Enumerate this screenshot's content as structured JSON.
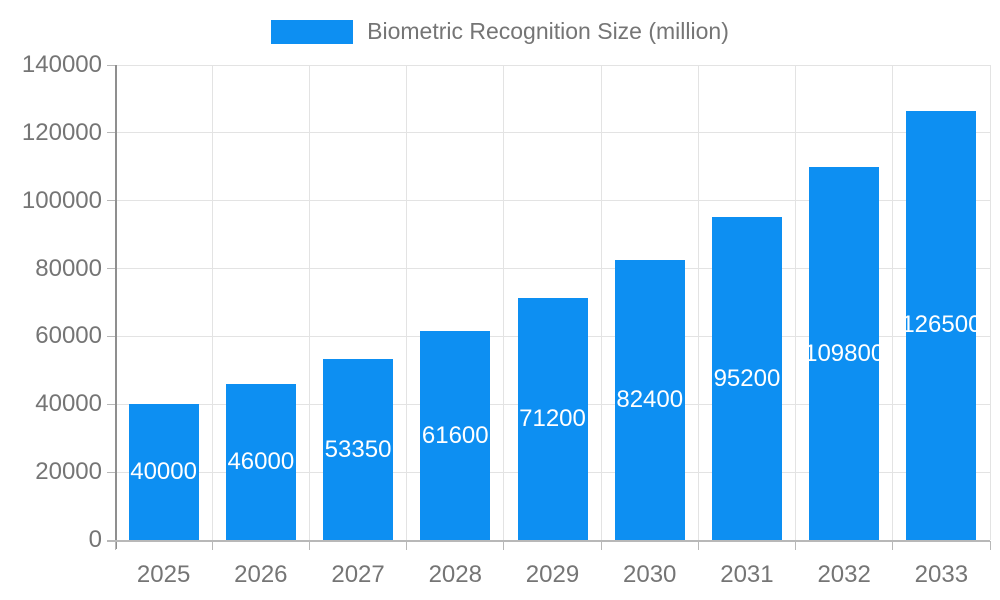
{
  "legend": {
    "label": "Biometric Recognition Size (million)"
  },
  "chart_data": {
    "type": "bar",
    "title": "Biometric Recognition Size (million)",
    "categories": [
      "2025",
      "2026",
      "2027",
      "2028",
      "2029",
      "2030",
      "2031",
      "2032",
      "2033"
    ],
    "values": [
      40000,
      46000,
      53350,
      61600,
      71200,
      82400,
      95200,
      109800,
      126500
    ],
    "data_labels": [
      "40000",
      "46000",
      "53350",
      "61600",
      "71200",
      "82400",
      "95200",
      "109800",
      "126500"
    ],
    "xlabel": "",
    "ylabel": "",
    "ylim": [
      0,
      140000
    ],
    "ytick_step": 20000,
    "ytick_labels": [
      "0",
      "20000",
      "40000",
      "60000",
      "80000",
      "100000",
      "120000",
      "140000"
    ],
    "grid": true,
    "legend_position": "top",
    "colors": {
      "bar": "#0d8ff2",
      "bar_label_text": "#ffffff",
      "axis_text": "#757575",
      "legend_text": "#757575",
      "grid_line": "#e3e3e3",
      "x_axis_line": "#b8b8b8",
      "y_axis_line": "#8f8f8f",
      "tick": "#b8b8b8",
      "background": "#ffffff"
    }
  }
}
